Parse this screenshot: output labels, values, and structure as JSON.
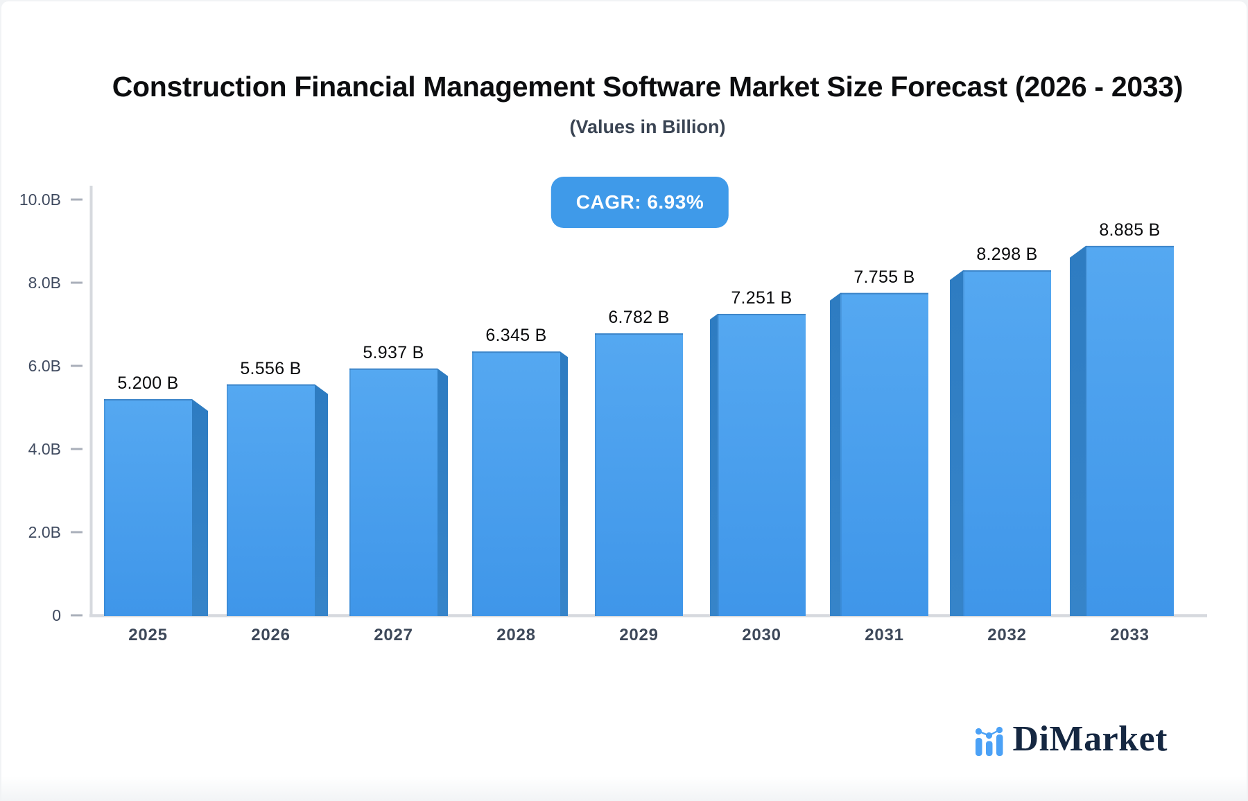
{
  "header": {
    "title": "Construction Financial Management Software Market Size Forecast (2026 - 2033)",
    "subtitle": "(Values in Billion)",
    "cagr_label": "CAGR: 6.93%"
  },
  "chart_data": {
    "type": "bar",
    "title": "Construction Financial Management Software Market Size Forecast (2026 - 2033)",
    "subtitle": "(Values in Billion)",
    "cagr": "6.93%",
    "categories": [
      "2025",
      "2026",
      "2027",
      "2028",
      "2029",
      "2030",
      "2031",
      "2032",
      "2033"
    ],
    "values": [
      5.2,
      5.556,
      5.937,
      6.345,
      6.782,
      7.251,
      7.755,
      8.298,
      8.885
    ],
    "bar_labels": [
      "5.200 B",
      "5.556 B",
      "5.937 B",
      "6.345 B",
      "6.782 B",
      "7.251 B",
      "7.755 B",
      "8.298 B",
      "8.885 B"
    ],
    "yticks": [
      {
        "value": 0,
        "label": "0"
      },
      {
        "value": 2,
        "label": "2.0B"
      },
      {
        "value": 4,
        "label": "4.0B"
      },
      {
        "value": 6,
        "label": "6.0B"
      },
      {
        "value": 8,
        "label": "8.0B"
      },
      {
        "value": 10,
        "label": "10.0B"
      }
    ],
    "ylim": [
      0,
      10
    ],
    "xlabel": "",
    "ylabel": "",
    "grid": false,
    "legend": false,
    "style": "3d-extruded-bars-facing-center",
    "colors": {
      "bar_front_top": "#55a8f1",
      "bar_front_bottom": "#3f96e9",
      "bar_front_edge": "#2c6aa8",
      "bar_side": "#2e7cc1",
      "bar_side_light": "#3684c9",
      "axis_line": "#d6d9de",
      "tick_mark": "#a9afba",
      "ytick_text": "#3f4a5f",
      "xtick_text": "#3d4859",
      "value_text": "#0a0b0d"
    }
  },
  "badge": {
    "text": "CAGR: 6.93%",
    "bg_color": "#3f9ae9",
    "text_color": "#ffffff"
  },
  "logo": {
    "text": "DiMarket",
    "text_color": "#152741",
    "icon": "bar-chart-logo-icon",
    "icon_color": "#4ba1f6"
  }
}
